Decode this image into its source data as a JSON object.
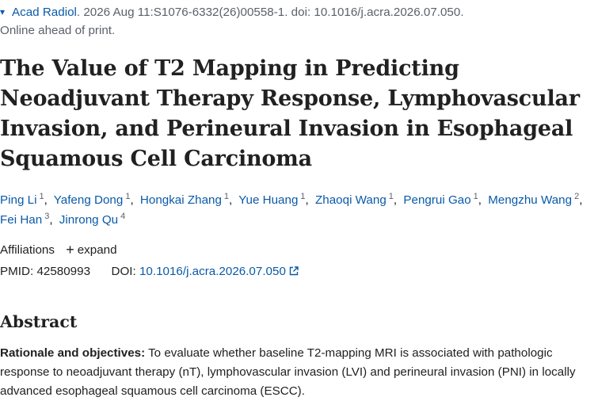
{
  "citation": {
    "journal": "Acad Radiol",
    "details": ". 2026 Aug 11:S1076-6332(26)00558-1. doi: 10.1016/j.acra.2026.07.050.",
    "status": "Online ahead of print."
  },
  "title": "The Value of T2 Mapping in Predicting Neoadjuvant Therapy Response, Lymphovascular Invasion, and Perineural Invasion in Esophageal Squamous Cell Carcinoma",
  "authors": [
    {
      "name": "Ping Li",
      "aff": "1"
    },
    {
      "name": "Yafeng Dong",
      "aff": "1"
    },
    {
      "name": "Hongkai Zhang",
      "aff": "1"
    },
    {
      "name": "Yue Huang",
      "aff": "1"
    },
    {
      "name": "Zhaoqi Wang",
      "aff": "1"
    },
    {
      "name": "Pengrui Gao",
      "aff": "1"
    },
    {
      "name": "Mengzhu Wang",
      "aff": "2"
    },
    {
      "name": "Fei Han",
      "aff": "3"
    },
    {
      "name": "Jinrong Qu",
      "aff": "4"
    }
  ],
  "affiliations": {
    "label": "Affiliations",
    "expand_label": "expand"
  },
  "ids": {
    "pmid_label": "PMID:",
    "pmid": "42580993",
    "doi_label": "DOI:",
    "doi": "10.1016/j.acra.2026.07.050"
  },
  "abstract": {
    "heading": "Abstract",
    "lead": "Rationale and objectives:",
    "text": "To evaluate whether baseline T2-mapping MRI is associated with pathologic response to neoadjuvant therapy (nT), lymphovascular invasion (LVI) and perineural invasion (PNI) in locally advanced esophageal squamous cell carcinoma (ESCC)."
  }
}
